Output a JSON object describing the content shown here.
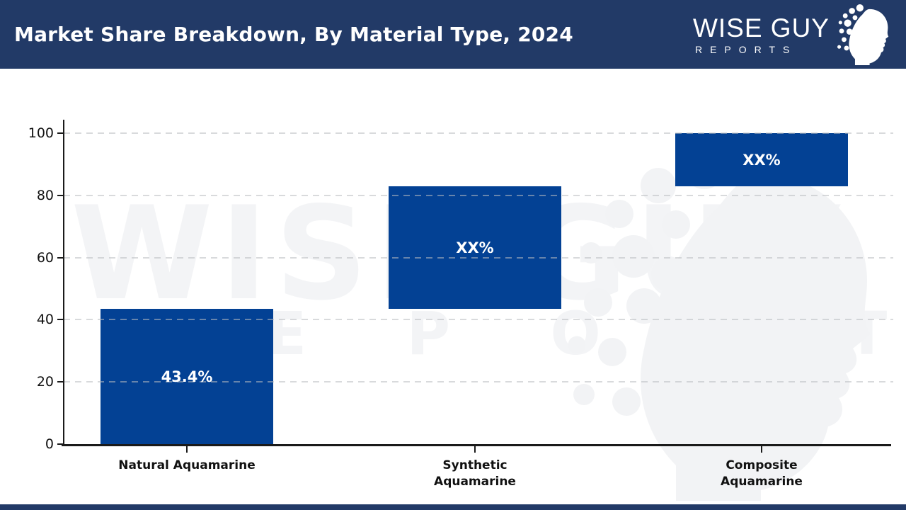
{
  "header": {
    "title": "Market Share Breakdown, By Material Type, 2024",
    "bg_color": "#223a67",
    "logo_line1": "WISE GUY",
    "logo_line2": "REPORTS"
  },
  "watermark": {
    "line1": "WISE GUY",
    "line2": "R E P O R T S"
  },
  "chart_data": {
    "type": "bar",
    "variant": "stacked-waterfall",
    "title": "Market Share Breakdown, By Material Type, 2024",
    "categories": [
      "Natural Aquamarine",
      "Synthetic Aquamarine",
      "Composite Aquamarine"
    ],
    "category_label_lines": [
      [
        "Natural Aquamarine"
      ],
      [
        "Synthetic",
        "Aquamarine"
      ],
      [
        "Composite",
        "Aquamarine"
      ]
    ],
    "segments": [
      {
        "category": "Natural Aquamarine",
        "start": 0,
        "end": 43.4,
        "label": "43.4%"
      },
      {
        "category": "Synthetic Aquamarine",
        "start": 43.4,
        "end": 82.9,
        "label": "XX%"
      },
      {
        "category": "Composite Aquamarine",
        "start": 82.9,
        "end": 100,
        "label": "XX%"
      }
    ],
    "values_displayed": [
      "43.4%",
      "XX%",
      "XX%"
    ],
    "xlabel": "",
    "ylabel": "",
    "ylim": [
      0,
      100
    ],
    "yticks": [
      0,
      20,
      40,
      60,
      80,
      100
    ],
    "grid": "horizontal-dashed",
    "legend": "none",
    "bar_color": "#034194",
    "bar_label_color": "#ffffff"
  }
}
